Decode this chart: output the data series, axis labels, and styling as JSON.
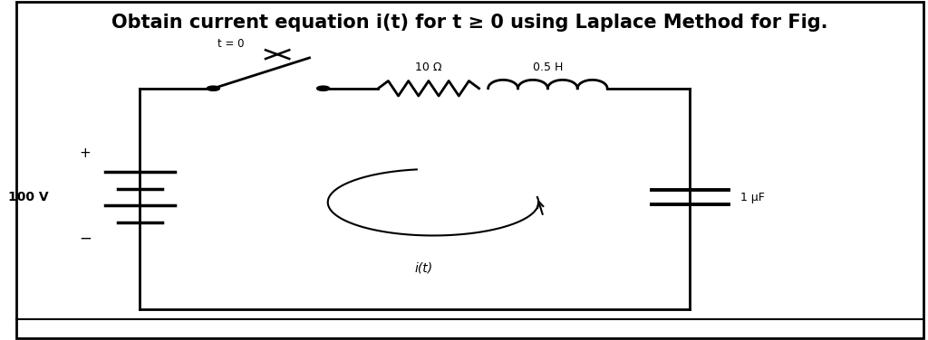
{
  "title": "Obtain current equation i(t) for t ≥ 0 using Laplace Method for Fig.",
  "title_fontsize": 15,
  "title_fontweight": "bold",
  "background_color": "#ffffff",
  "border_color": "#000000",
  "circuit": {
    "battery_voltage": "100 V",
    "resistor_label": "10 Ω",
    "inductor_label": "0.5 H",
    "capacitor_label": "1 μF",
    "current_label": "i(t)",
    "switch_label": "t = 0"
  }
}
